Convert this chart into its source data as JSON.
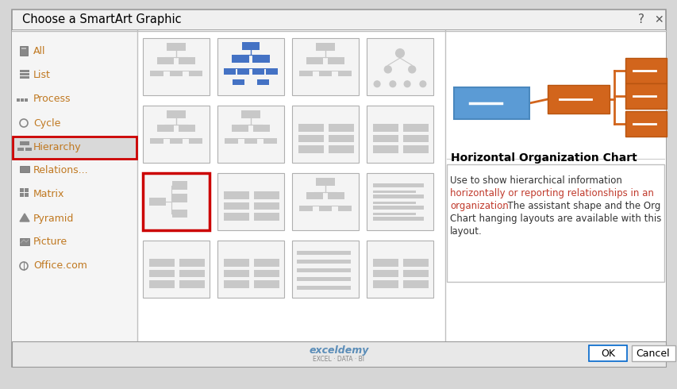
{
  "title": "Choose a SmartArt Graphic",
  "bg_color": "#d6d6d6",
  "dialog_bg": "#ffffff",
  "left_panel_bg": "#f0f0f0",
  "left_items": [
    "All",
    "List",
    "Process",
    "Cycle",
    "Hierarchy",
    "Relations...",
    "Matrix",
    "Pyramid",
    "Picture",
    "Office.com"
  ],
  "selected_item_index": 4,
  "right_title": "Horizontal Organization Chart",
  "right_desc_line1": "Use to show hierarchical information",
  "right_desc_line2": "horizontally or reporting relationships in an",
  "right_desc_line3": "organization. The assistant shape and the Org",
  "right_desc_line4": "Chart hanging layouts are available with this",
  "right_desc_line5": "layout.",
  "orange_color": "#D2651C",
  "blue_color": "#5B9BD5",
  "footer_bg": "#e0e0e0",
  "ok_label": "OK",
  "cancel_label": "Cancel",
  "highlight_border": "#CC0000",
  "red_text_color": "#C0392B",
  "dark_text": "#1a1a1a",
  "gray_thumb": "#c8c8c8",
  "blue_thumb": "#4472C4",
  "panel_sep": "#c0c0c0"
}
